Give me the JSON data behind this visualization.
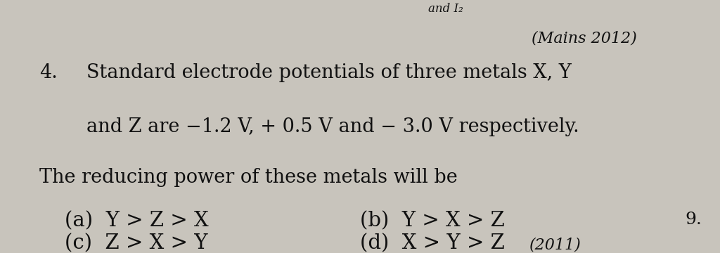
{
  "background_color": "#c8c4bc",
  "top_text": "and I₂",
  "tag": "(Mains 2012)",
  "question_number": "4.",
  "question_line1": "Standard electrode potentials of three metals X, Y",
  "question_line2": "and Z are −1.2 V, + 0.5 V and − 3.0 V respectively.",
  "question_line3": "The reducing power of these metals will be",
  "option_a": "(a)  Y > Z > X",
  "option_b": "(b)  Y > X > Z",
  "option_c": "(c)  Z > X > Y",
  "option_d": "(d)  X > Y > Z",
  "year_tag": "(2011)",
  "side_number": "9.",
  "text_color": "#111111",
  "font_size_question": 19.5,
  "font_size_options": 21,
  "font_size_tag": 16,
  "font_size_top": 12,
  "font_size_side": 18
}
